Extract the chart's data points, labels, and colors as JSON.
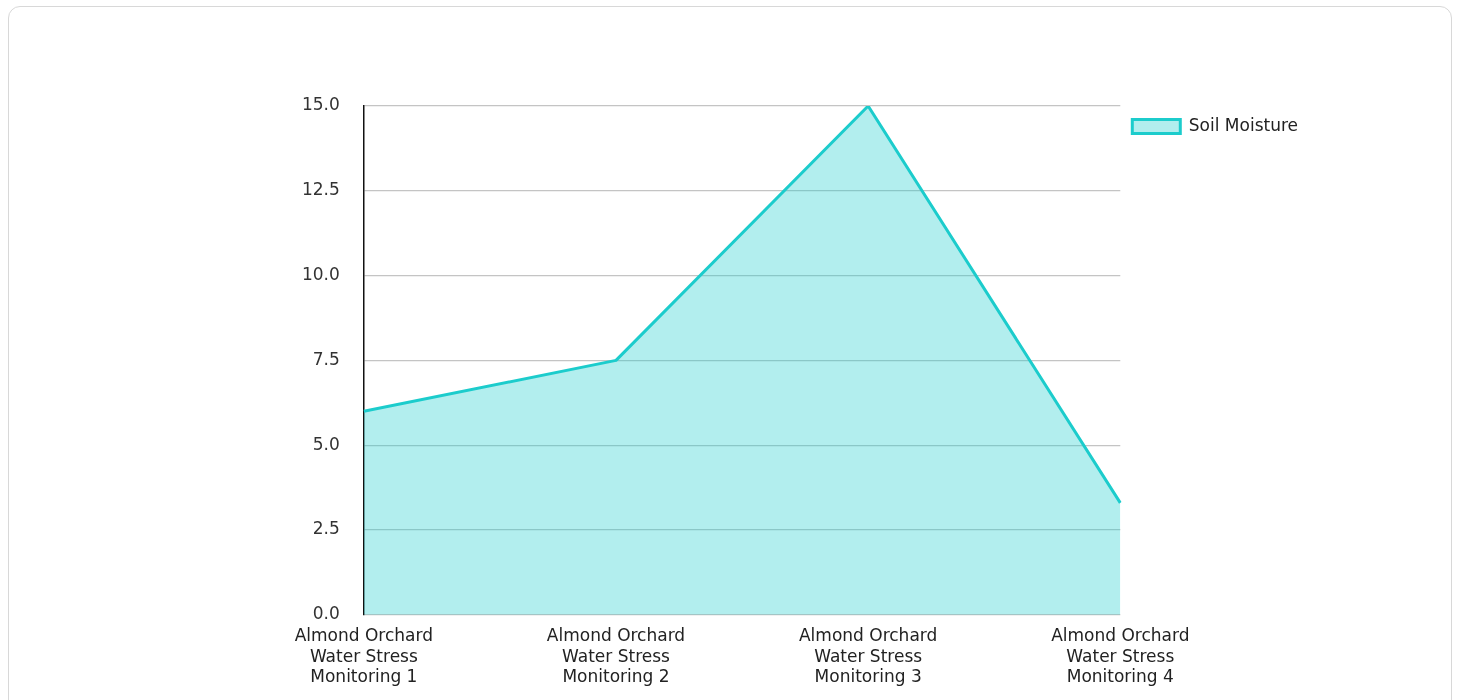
{
  "chart_data": {
    "type": "area",
    "categories": [
      "Almond Orchard Water Stress Monitoring 1",
      "Almond Orchard Water Stress Monitoring 2",
      "Almond Orchard Water Stress Monitoring 3",
      "Almond Orchard Water Stress Monitoring 4"
    ],
    "series": [
      {
        "name": "Soil Moisture",
        "color": "#1ccccc",
        "values": [
          6.0,
          7.5,
          15.0,
          3.3
        ]
      }
    ],
    "ylim": [
      0,
      15
    ],
    "yticks": [
      {
        "value": 0,
        "label": "0.0"
      },
      {
        "value": 2.5,
        "label": "2.5"
      },
      {
        "value": 5,
        "label": "5.0"
      },
      {
        "value": 7.5,
        "label": "7.5"
      },
      {
        "value": 10,
        "label": "10.0"
      },
      {
        "value": 12.5,
        "label": "12.5"
      },
      {
        "value": 15,
        "label": "15.0"
      }
    ],
    "grid": "y",
    "legend": "top right",
    "marker": "none"
  }
}
